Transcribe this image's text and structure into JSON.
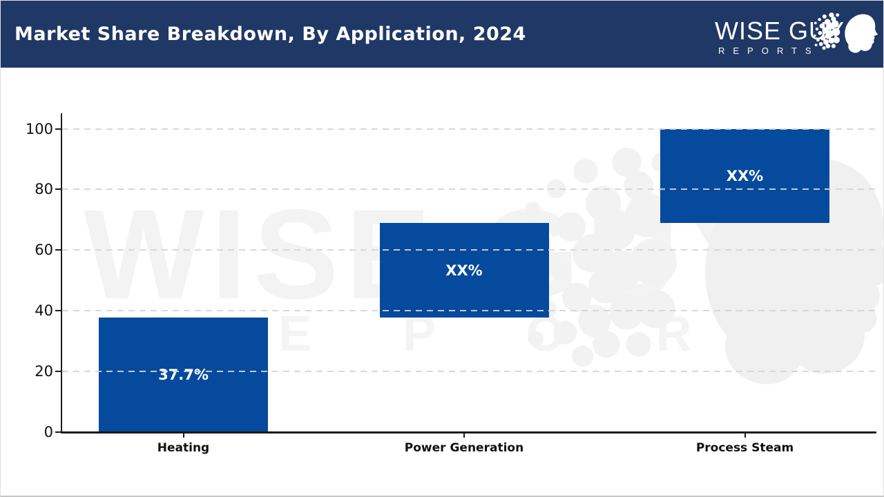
{
  "header": {
    "title": "Market Share Breakdown, By Application, 2024",
    "logo": {
      "primary": "WISE GUY",
      "secondary": "REPORTS"
    }
  },
  "watermark": {
    "primary": "WISE GUY",
    "secondary": "R E P O R T S"
  },
  "chart_data": {
    "type": "bar",
    "subtype": "floating-waterfall",
    "title": "Market Share Breakdown, By Application, 2024",
    "categories": [
      "Heating",
      "Power Generation",
      "Process Steam"
    ],
    "series": [
      {
        "name": "Market Share",
        "segments": [
          {
            "category": "Heating",
            "start": 0,
            "end": 37.7,
            "label": "37.7%"
          },
          {
            "category": "Power Generation",
            "start": 37.7,
            "end": 69,
            "label": "XX%"
          },
          {
            "category": "Process Steam",
            "start": 69,
            "end": 100,
            "label": "XX%"
          }
        ]
      }
    ],
    "xlabel": "",
    "ylabel": "",
    "ylim": [
      0,
      105
    ],
    "yticks": [
      0,
      20,
      40,
      60,
      80,
      100
    ],
    "grid": {
      "horizontal": true,
      "style": "dashed",
      "drawn_above_bars": true
    },
    "legend": "none",
    "bar_color": "#054a9c",
    "bar_label_color": "#ffffff"
  },
  "colors": {
    "header_bg": "#1f3865",
    "bar": "#054a9c",
    "axis": "#1a1a1a",
    "grid": "#d9d9d9",
    "watermark": "#f3f3f3",
    "page_bg": "#ffffff"
  }
}
